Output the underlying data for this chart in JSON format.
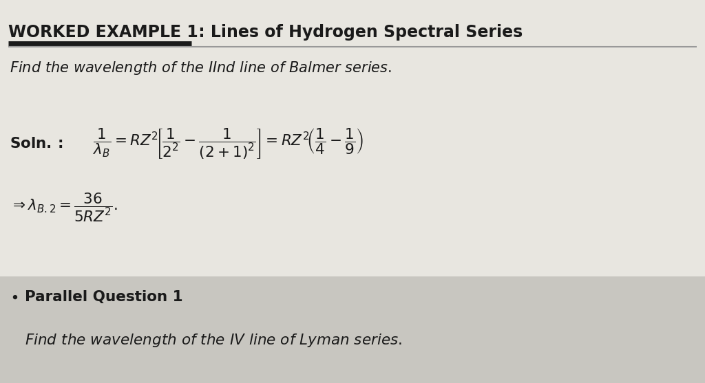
{
  "title_bold": "WORKED EXAMPLE 1",
  "title_rest": " : Lines of Hydrogen Spectral Series",
  "problem": "Find the wavelength of the IInd line of Balmer series.",
  "parallel_label": "Parallel Question 1",
  "parallel_question": "Find the wavelength of the IV line of Lyman series.",
  "bg_color": "#d8d6d0",
  "main_bg": "#e8e6e0",
  "parallel_bg": "#c8c6c0",
  "text_color": "#1a1a1a",
  "fig_width": 10.24,
  "fig_height": 5.57,
  "dpi": 100,
  "title_line1_color": "#222222",
  "title_line2_color": "#888888",
  "underline1_thick": 5,
  "underline2_thick": 2
}
